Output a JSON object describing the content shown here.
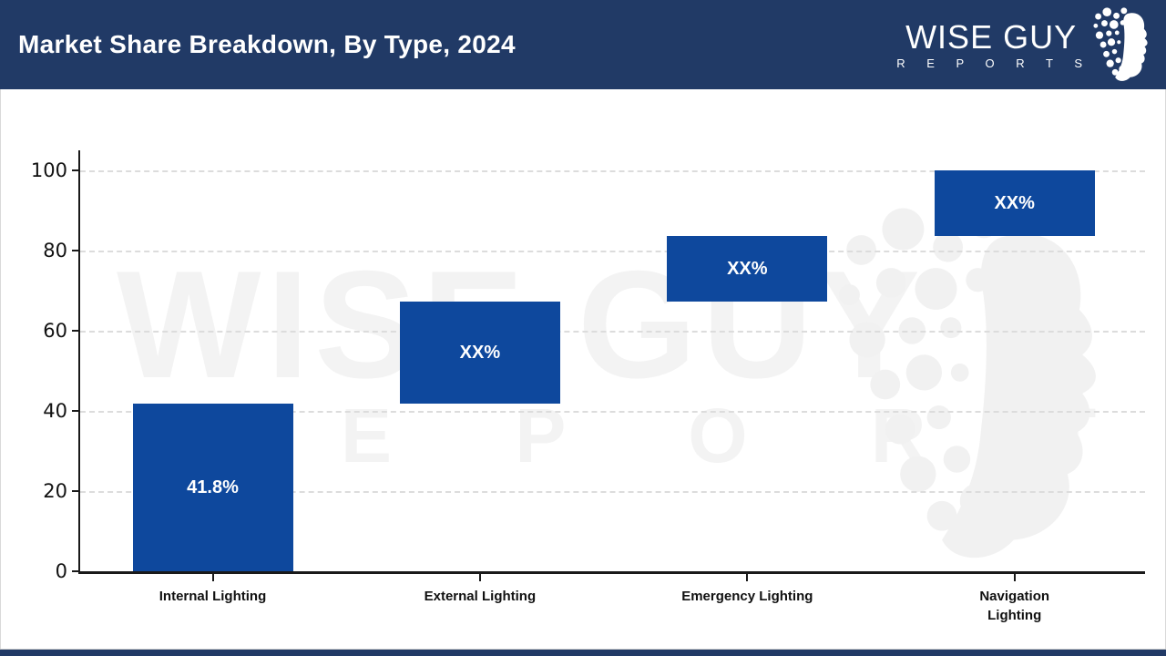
{
  "header": {
    "title": "Market Share Breakdown, By Type, 2024",
    "logo": {
      "name": "WISE GUY",
      "sub": "R E P O R T S"
    }
  },
  "watermark": {
    "line1": "WISE GUY",
    "line2": "R E P O R T S"
  },
  "colors": {
    "header_bg": "#213a66",
    "bar": "#0e489d",
    "grid": "#dcdcdc",
    "axis": "#1a1a1a",
    "watermark": "#f3f3f3"
  },
  "chart_data": {
    "type": "bar",
    "variant": "floating-breakdown",
    "title": "Market Share Breakdown, By Type, 2024",
    "categories": [
      "Internal Lighting",
      "External Lighting",
      "Emergency Lighting",
      "Navigation\nLighting"
    ],
    "bars": [
      {
        "category": "Internal Lighting",
        "start": 0,
        "end": 41.8,
        "label": "41.8%"
      },
      {
        "category": "External Lighting",
        "start": 41.8,
        "end": 67.2,
        "label": "XX%"
      },
      {
        "category": "Emergency Lighting",
        "start": 67.2,
        "end": 83.6,
        "label": "XX%"
      },
      {
        "category": "Navigation Lighting",
        "start": 83.6,
        "end": 100,
        "label": "XX%"
      }
    ],
    "ylim": [
      0,
      100
    ],
    "yticks": [
      0,
      20,
      40,
      60,
      80,
      100
    ],
    "grid": "horizontal-dashed",
    "legend": "none",
    "xlabel": "",
    "ylabel": ""
  }
}
